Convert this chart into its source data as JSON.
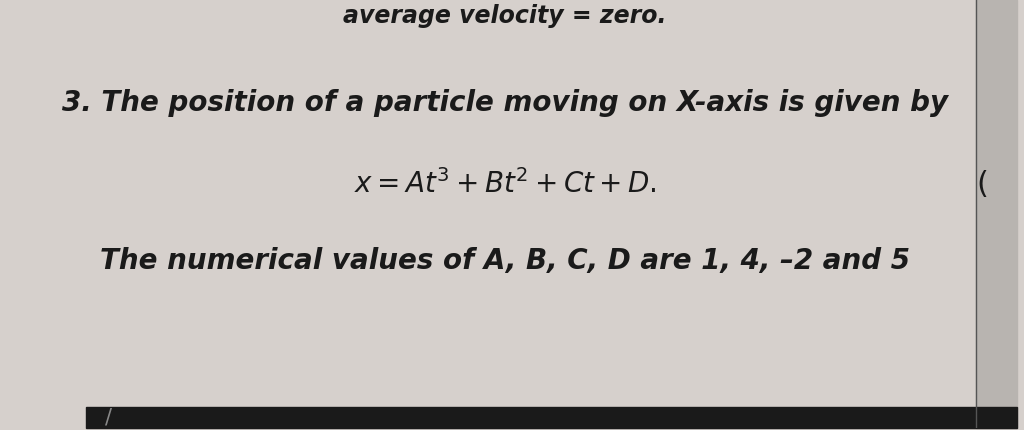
{
  "background_color": "#d6d0cc",
  "top_text": "average velocity = zero.",
  "line1": "3. The position of a particle moving on X-axis is given by",
  "line2": "$x = At^3 + Bt^2 + Ct + D.$",
  "line3": "The numerical values of A, B, C, D are 1, 4, –2 and 5",
  "right_bar_color": "#b8b4b0",
  "bottom_bar_color": "#1a1a1a",
  "text_color": "#1a1a1a",
  "font_size_main": 20,
  "font_size_top": 17,
  "font_size_line3": 20
}
